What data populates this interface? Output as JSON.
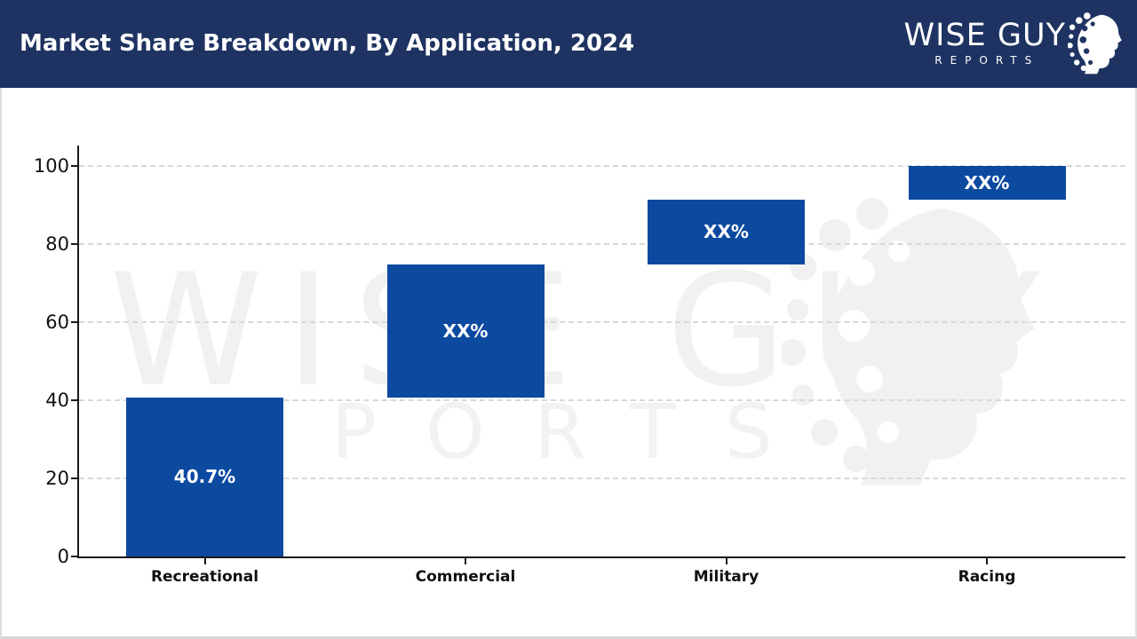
{
  "header": {
    "title": "Market Share Breakdown, By Application, 2024",
    "logo": {
      "wordmark": "WISE GUY",
      "subtext": "REPORTS"
    }
  },
  "watermark": {
    "wordmark": "WISE GUY",
    "subtext": "REPORTS"
  },
  "chart_data": {
    "type": "bar",
    "subtype": "waterfall",
    "title": "Market Share Breakdown, By Application, 2024",
    "categories": [
      "Recreational",
      "Commercial",
      "Military",
      "Racing"
    ],
    "segments": [
      {
        "category": "Recreational",
        "start": 0,
        "end": 40.7,
        "label": "40.7%"
      },
      {
        "category": "Commercial",
        "start": 40.7,
        "end": 74.8,
        "label": "XX%"
      },
      {
        "category": "Military",
        "start": 74.8,
        "end": 91.4,
        "label": "XX%"
      },
      {
        "category": "Racing",
        "start": 91.4,
        "end": 100,
        "label": "XX%"
      }
    ],
    "xlabel": "",
    "ylabel": "",
    "ylim": [
      0,
      100
    ],
    "yticks": [
      0,
      20,
      40,
      60,
      80,
      100
    ],
    "grid": "horizontal-dashed",
    "legend": "none",
    "bar_color": "#0c4aa0",
    "bar_label_color": "#ffffff"
  },
  "colors": {
    "header_bg": "#1e3361",
    "bar": "#0c4aa0",
    "grid": "#d8d8d8",
    "axis": "#1a1a1a",
    "watermark": "#f1f1f1"
  }
}
